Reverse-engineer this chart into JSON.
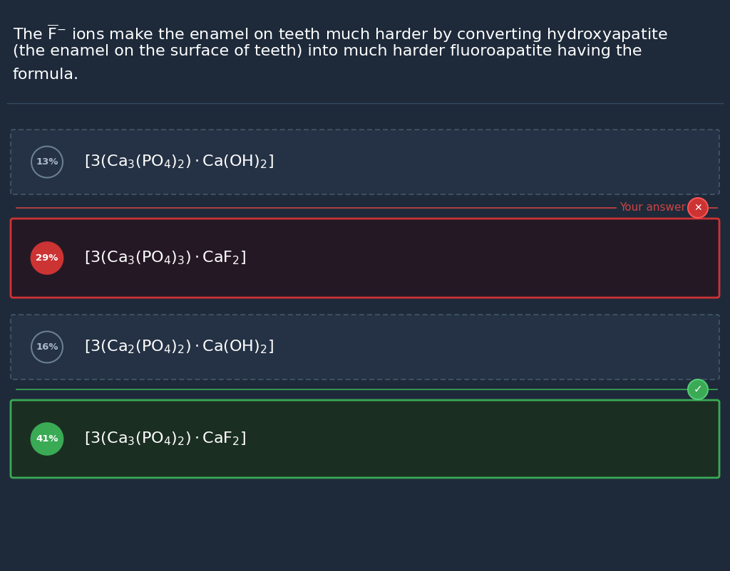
{
  "bg_dark": "#1e2a3a",
  "bg_panel": "#253245",
  "text_color": "#ffffff",
  "options": [
    {
      "percent": "13%",
      "badge_color": "#253245",
      "badge_border": "#6a8090",
      "box_border_color": "#4a6070",
      "box_fill": "#253245",
      "is_wrong": false,
      "is_correct": false,
      "show_your_answer": false,
      "show_correct_mark": false
    },
    {
      "percent": "29%",
      "badge_color": "#cc3333",
      "badge_border": "#cc3333",
      "box_border_color": "#cc3333",
      "box_fill": "#251825",
      "is_wrong": true,
      "is_correct": false,
      "show_your_answer": true,
      "show_correct_mark": false
    },
    {
      "percent": "16%",
      "badge_color": "#253245",
      "badge_border": "#6a8090",
      "box_border_color": "#4a6070",
      "box_fill": "#253245",
      "is_wrong": false,
      "is_correct": false,
      "show_your_answer": false,
      "show_correct_mark": false
    },
    {
      "percent": "41%",
      "badge_color": "#3aaa55",
      "badge_border": "#3aaa55",
      "box_border_color": "#3aaa55",
      "box_fill": "#1b2e22",
      "is_wrong": false,
      "is_correct": true,
      "show_your_answer": false,
      "show_correct_mark": true
    }
  ]
}
